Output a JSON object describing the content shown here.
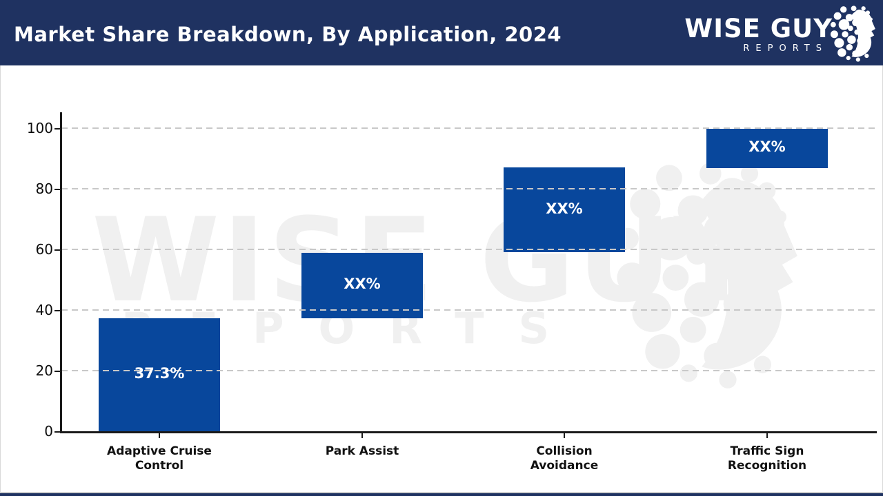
{
  "header": {
    "title": "Market Share Breakdown, By Application, 2024"
  },
  "logo": {
    "line1": "WISE GUY",
    "line2": "REPORTS"
  },
  "watermark": {
    "line1": "WISE GUY",
    "line2": "REPORTS"
  },
  "chart_data": {
    "type": "bar",
    "subtype": "waterfall",
    "title": "Market Share Breakdown, By Application, 2024",
    "xlabel": "",
    "ylabel": "",
    "ylim": [
      0,
      105
    ],
    "yticks": [
      0,
      20,
      40,
      60,
      80,
      100
    ],
    "grid": "horizontal-dashed",
    "legend": false,
    "bar_color": "#08479c",
    "label_color": "#ffffff",
    "categories": [
      {
        "label": "Adaptive Cruise Control",
        "lines": [
          "Adaptive Cruise",
          "Control"
        ]
      },
      {
        "label": "Park Assist",
        "lines": [
          "Park Assist"
        ]
      },
      {
        "label": "Collision Avoidance",
        "lines": [
          "Collision",
          "Avoidance"
        ]
      },
      {
        "label": "Traffic Sign Recognition",
        "lines": [
          "Traffic Sign",
          "Recognition"
        ]
      }
    ],
    "segments": [
      {
        "category": "Adaptive Cruise Control",
        "start": 0,
        "end": 37.3,
        "label": "37.3%"
      },
      {
        "category": "Park Assist",
        "start": 37.3,
        "end": 58.9,
        "label": "XX%"
      },
      {
        "category": "Collision Avoidance",
        "start": 59.1,
        "end": 87.0,
        "label": "XX%"
      },
      {
        "category": "Traffic Sign Recognition",
        "start": 86.8,
        "end": 99.8,
        "label": "XX%"
      }
    ]
  },
  "colors": {
    "header_bg": "#1f3261",
    "bar": "#08479c",
    "watermark": "#f0f0f0",
    "gridline": "#c8c8c8",
    "axis": "#1a1a1a"
  }
}
